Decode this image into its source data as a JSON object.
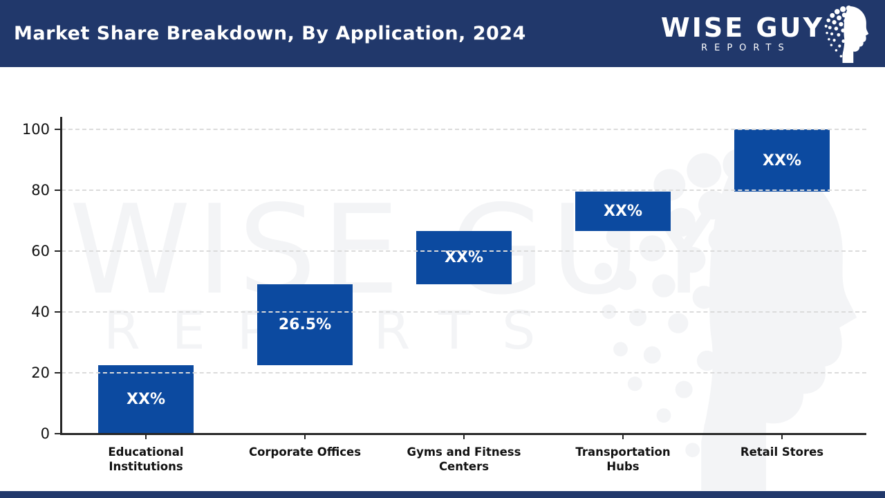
{
  "header": {
    "title": "Market Share Breakdown, By Application, 2024",
    "logo_line1": "WISE GUY",
    "logo_line2": "REPORTS"
  },
  "watermark": {
    "line1": "WISE GUY",
    "line2": "REPORTS"
  },
  "colors": {
    "header_bg": "#21386B",
    "bar": "#0C4AA0",
    "watermark": "#F3F4F6",
    "axis": "#262626",
    "grid": "#DBDBDB",
    "bar_label": "#FFFFFF",
    "tick_label": "#111111"
  },
  "chart_data": {
    "type": "bar",
    "subtype": "waterfall",
    "title": "Market Share Breakdown, By Application, 2024",
    "categories": [
      "Educational\nInstitutions",
      "Corporate Offices",
      "Gyms and Fitness\nCenters",
      "Transportation\nHubs",
      "Retail Stores"
    ],
    "bars": [
      {
        "category": "Educational Institutions",
        "start": 0,
        "end": 22.5,
        "label": "XX%"
      },
      {
        "category": "Corporate Offices",
        "start": 22.5,
        "end": 49,
        "label": "26.5%"
      },
      {
        "category": "Gyms and Fitness Centers",
        "start": 49,
        "end": 66.5,
        "label": "XX%"
      },
      {
        "category": "Transportation Hubs",
        "start": 66.5,
        "end": 79.5,
        "label": "XX%"
      },
      {
        "category": "Retail Stores",
        "start": 79.5,
        "end": 100,
        "label": "XX%"
      }
    ],
    "xlabel": "",
    "ylabel": "",
    "ylim": [
      0,
      100
    ],
    "y_ticks": [
      0,
      20,
      40,
      60,
      80,
      100
    ],
    "grid": "horizontal-dashed-above-bars",
    "legend": "none"
  }
}
